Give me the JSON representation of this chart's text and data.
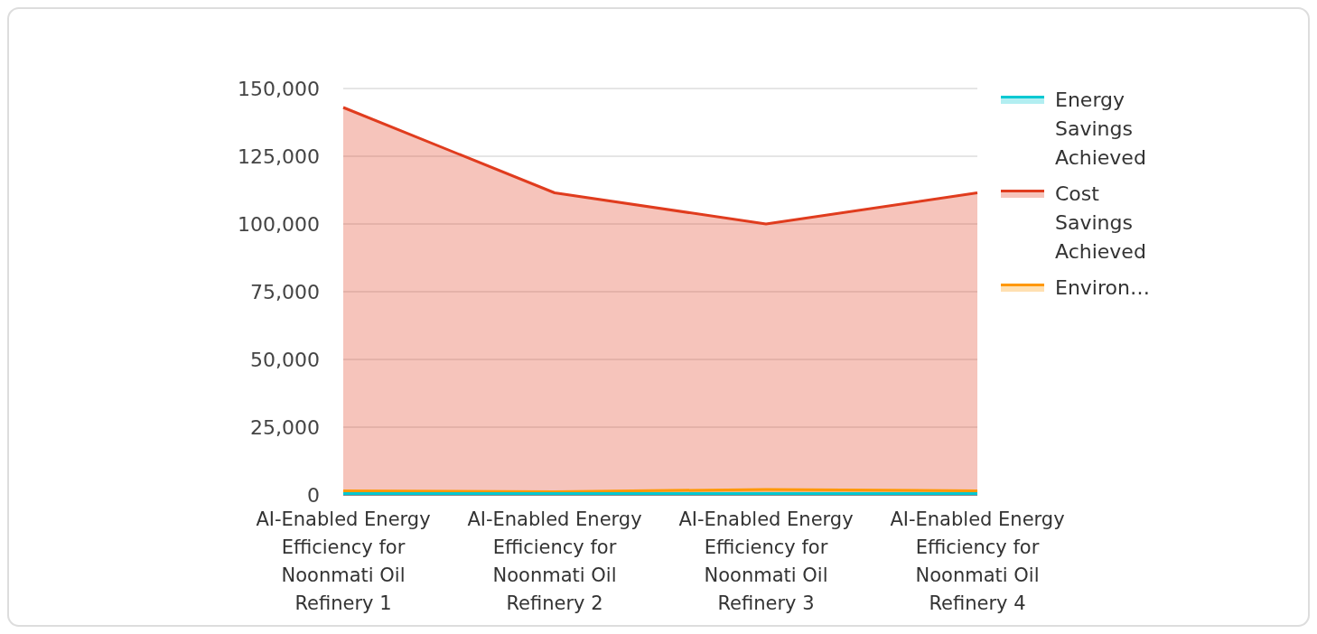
{
  "chart_data": {
    "type": "area",
    "categories": [
      "AI-Enabled Energy Efficiency for Noonmati Oil Refinery 1",
      "AI-Enabled Energy Efficiency for Noonmati Oil Refinery 2",
      "AI-Enabled Energy Efficiency for Noonmati Oil Refinery 3",
      "AI-Enabled Energy Efficiency for Noonmati Oil Refinery 4"
    ],
    "series": [
      {
        "name": "Energy Savings Achieved",
        "color": "#00c8d2",
        "values": [
          500,
          500,
          500,
          500
        ]
      },
      {
        "name": "Cost Savings Achieved",
        "color": "#e03c1e",
        "values": [
          143000,
          111500,
          100000,
          111500
        ]
      },
      {
        "name": "Environ…",
        "color": "#ff9800",
        "values": [
          1500,
          1200,
          2000,
          1500
        ]
      }
    ],
    "ylim": [
      0,
      150000
    ],
    "yticks": [
      {
        "value": 0,
        "label": "0"
      },
      {
        "value": 25000,
        "label": "25,000"
      },
      {
        "value": 50000,
        "label": "50,000"
      },
      {
        "value": 75000,
        "label": "75,000"
      },
      {
        "value": 100000,
        "label": "100,000"
      },
      {
        "value": 125000,
        "label": "125,000"
      },
      {
        "value": 150000,
        "label": "150,000"
      }
    ],
    "grid": "y",
    "legend": "right"
  }
}
